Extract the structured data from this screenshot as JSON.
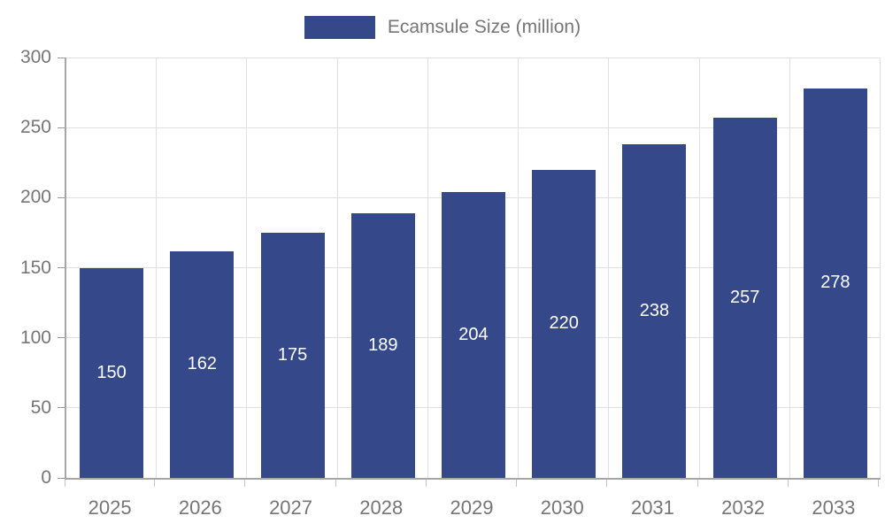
{
  "chart_data": {
    "type": "bar",
    "legend": "Ecamsule Size (million)",
    "categories": [
      "2025",
      "2026",
      "2027",
      "2028",
      "2029",
      "2030",
      "2031",
      "2032",
      "2033"
    ],
    "values": [
      150,
      162,
      175,
      189,
      204,
      220,
      238,
      257,
      278
    ],
    "ylim": [
      0,
      300
    ],
    "yticks": [
      0,
      50,
      100,
      150,
      200,
      250,
      300
    ],
    "grid": true,
    "legend_position": "top-center",
    "bar_color": "#35498a",
    "bar_label_color": "#ffffff",
    "axis_color": "#a6a6a6",
    "grid_color": "#e0e0e0",
    "tick_text_color": "#757575"
  }
}
